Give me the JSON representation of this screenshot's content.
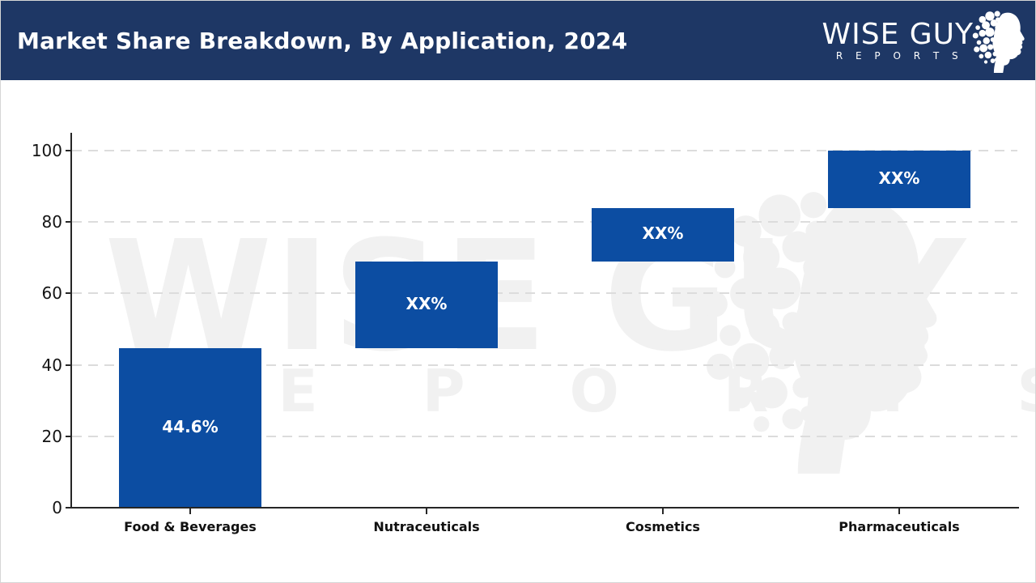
{
  "header": {
    "title": "Market Share Breakdown, By Application, 2024",
    "logo": {
      "line1": "WISE GUY",
      "line2": "R E P O R T S"
    }
  },
  "watermark": {
    "line1": "WISE GUY",
    "line2": "R E P O R T S"
  },
  "colors": {
    "header_bg": "#1e3765",
    "bar": "#0c4da2",
    "gridline": "#dcdcdc",
    "axis": "#262626",
    "watermark": "#f1f1f1",
    "title_text": "#ffffff",
    "bar_label_text": "#ffffff"
  },
  "chart_data": {
    "type": "bar",
    "subtype": "cumulative-waterfall",
    "title": "Market Share Breakdown, By Application, 2024",
    "categories": [
      "Food & Beverages",
      "Nutraceuticals",
      "Cosmetics",
      "Pharmaceuticals"
    ],
    "segments": [
      {
        "category": "Food & Beverages",
        "label": "44.6%",
        "start": 0,
        "end": 44.6
      },
      {
        "category": "Nutraceuticals",
        "label": "XX%",
        "start": 44.6,
        "end": 69.0
      },
      {
        "category": "Cosmetics",
        "label": "XX%",
        "start": 69.0,
        "end": 83.9
      },
      {
        "category": "Pharmaceuticals",
        "label": "XX%",
        "start": 83.9,
        "end": 100.0
      }
    ],
    "xlabel": "",
    "ylabel": "",
    "yticks": [
      0,
      20,
      40,
      60,
      80,
      100
    ],
    "ylim": [
      0,
      105
    ],
    "grid": "horizontal-dashed",
    "legend": "none",
    "bar_color": "#0c4da2",
    "value_label_color": "#ffffff"
  }
}
